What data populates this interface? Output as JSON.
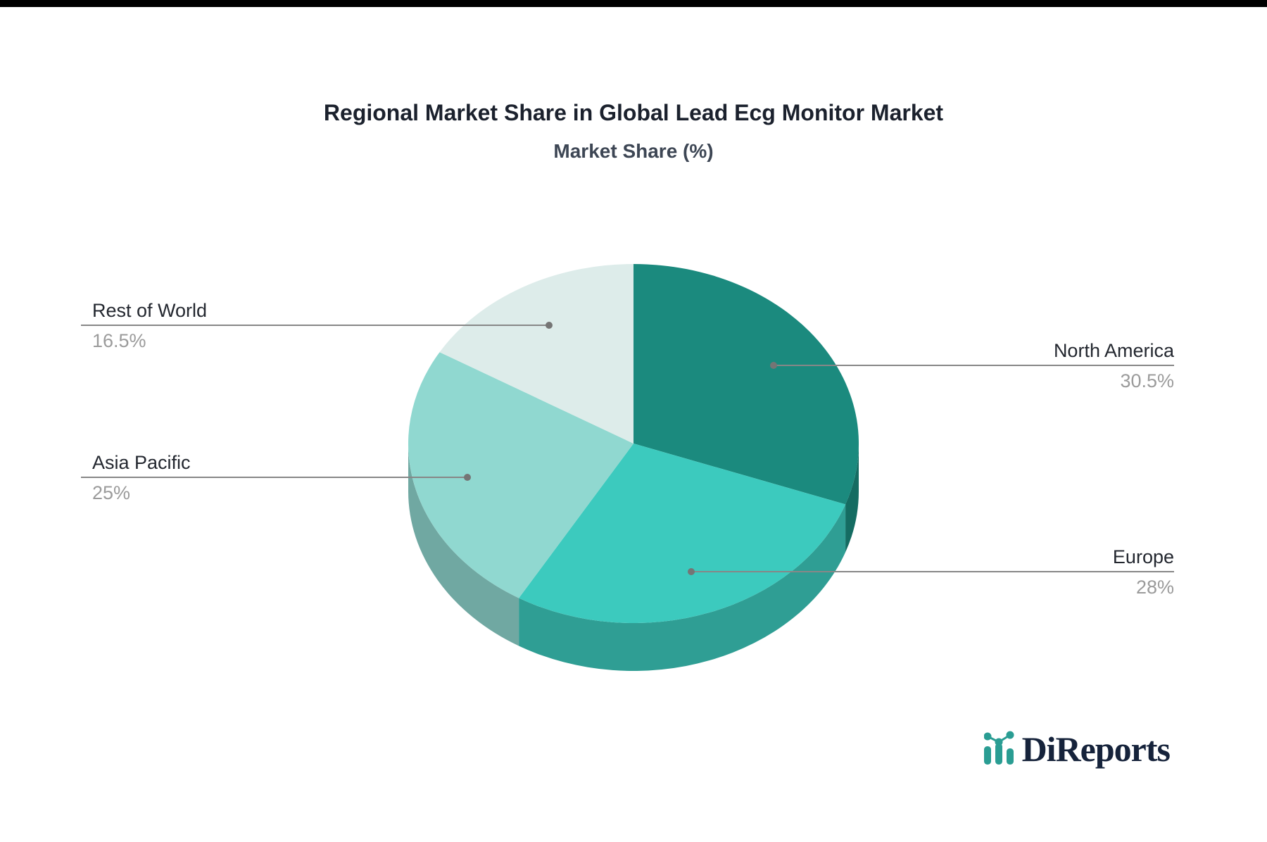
{
  "chart_data": {
    "type": "pie",
    "title": "Regional Market Share in Global Lead Ecg Monitor Market",
    "subtitle": "Market Share (%)",
    "unit": "%",
    "start_angle": "12-o-clock",
    "direction": "clockwise",
    "style": "3d-depth",
    "legend_position": "callout-labels",
    "slices": [
      {
        "label": "North America",
        "value": 30.5,
        "display": "30.5%",
        "color": "#1b8a7e",
        "side": "right"
      },
      {
        "label": "Europe",
        "value": 28,
        "display": "28%",
        "color": "#3ccabe",
        "side": "right"
      },
      {
        "label": "Asia Pacific",
        "value": 25,
        "display": "25%",
        "color": "#90d8d0",
        "side": "left"
      },
      {
        "label": "Rest of World",
        "value": 16.5,
        "display": "16.5%",
        "color": "#ddecea",
        "side": "left"
      }
    ],
    "label_colors": {
      "name": "#23272f",
      "value": "#9b9b9b",
      "leader_line": "#878787",
      "leader_dot": "#757575"
    }
  },
  "branding": {
    "logo_text": "DiReports",
    "logo_text_color": "#16233b",
    "logo_icon_color": "#2a9d93"
  }
}
